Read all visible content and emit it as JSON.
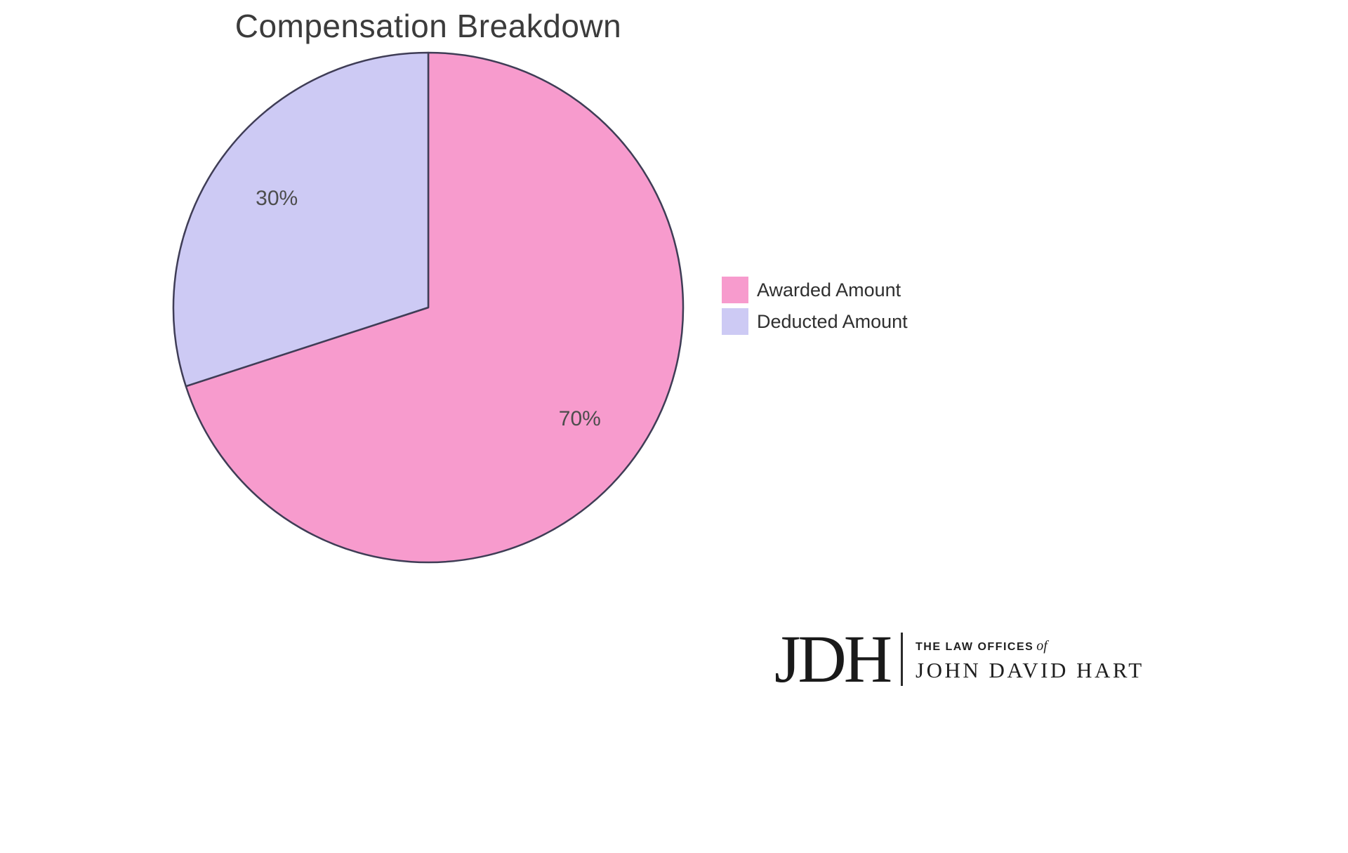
{
  "chart_data": {
    "type": "pie",
    "title": "Compensation Breakdown",
    "slices": [
      {
        "label": "Awarded Amount",
        "value": 70,
        "pct_label": "70%",
        "color": "#F79BCD"
      },
      {
        "label": "Deducted Amount",
        "value": 30,
        "pct_label": "30%",
        "color": "#CDCAF4"
      }
    ],
    "stroke_color": "#3F3D56",
    "start_angle_deg": 0,
    "direction": "clockwise",
    "legend_position": "right",
    "label_color": "#4d4d4d"
  },
  "branding": {
    "monogram": "JDH",
    "tagline": "THE LAW OFFICES",
    "of_word": "of",
    "firm_name": "JOHN DAVID HART"
  }
}
